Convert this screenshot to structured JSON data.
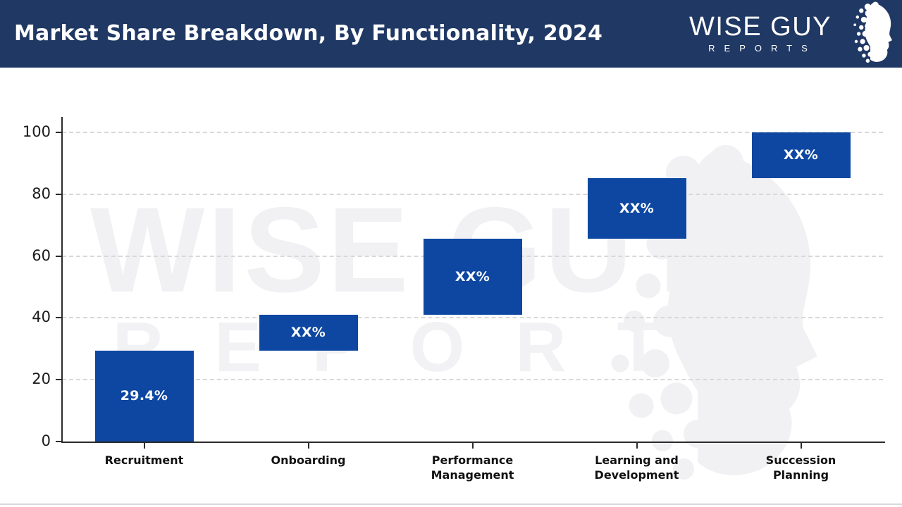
{
  "header": {
    "title": "Market Share Breakdown, By Functionality, 2024",
    "logo": {
      "wordmark": "WISE GUY",
      "subtext": "REPORTS"
    }
  },
  "watermark": {
    "wordmark": "WISE GUY",
    "subtext": "REPORTS"
  },
  "colors": {
    "header_bg": "#203864",
    "bar": "#0d47a1",
    "grid": "#d8d8d8",
    "axis": "#2b2b2b",
    "bar_label_text": "#ffffff",
    "watermark": "#f1f1f4",
    "footer_line": "#d9d9d9"
  },
  "chart_data": {
    "type": "bar",
    "subtype": "waterfall",
    "title": "Market Share Breakdown, By Functionality, 2024",
    "categories": [
      "Recruitment",
      "Onboarding",
      "Performance\nManagement",
      "Learning and\nDevelopment",
      "Succession\nPlanning"
    ],
    "segments": [
      {
        "category": "Recruitment",
        "start": 0,
        "end": 29.4,
        "label": "29.4%"
      },
      {
        "category": "Onboarding",
        "start": 29.4,
        "end": 41.0,
        "label": "XX%"
      },
      {
        "category": "Performance Management",
        "start": 41.0,
        "end": 65.5,
        "label": "XX%"
      },
      {
        "category": "Learning and Development",
        "start": 65.5,
        "end": 85.2,
        "label": "XX%"
      },
      {
        "category": "Succession Planning",
        "start": 85.2,
        "end": 100.0,
        "label": "XX%"
      }
    ],
    "xlabel": "",
    "ylabel": "",
    "yticks": [
      0,
      20,
      40,
      60,
      80,
      100
    ],
    "ylim": [
      0,
      105
    ],
    "grid": true,
    "grid_style": "dashed",
    "legend": false,
    "bar_color": "#0d47a1"
  }
}
